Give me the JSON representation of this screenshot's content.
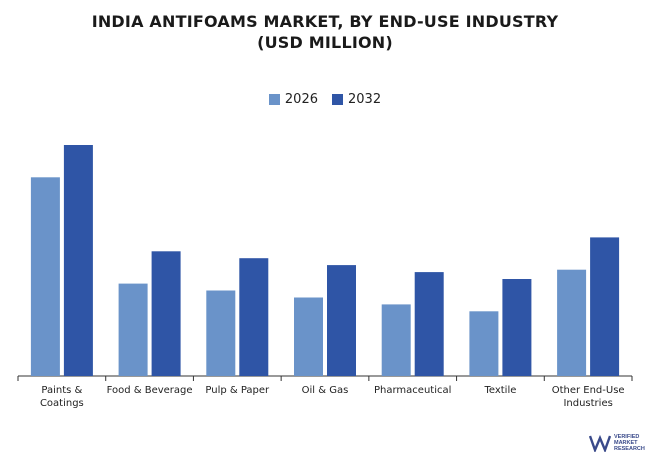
{
  "chart_data": {
    "type": "bar",
    "title": "INDIA ANTIFOAMS MARKET, BY END-USE INDUSTRY",
    "subtitle": "(USD MILLION)",
    "xlabel": "",
    "ylabel": "",
    "ylim": [
      0,
      100
    ],
    "grid": false,
    "legend_position": "top-center",
    "categories": [
      [
        "Paints &",
        "Coatings"
      ],
      [
        "Food & Beverage"
      ],
      [
        "Pulp & Paper"
      ],
      [
        "Oil & Gas"
      ],
      [
        "Pharmaceutical"
      ],
      [
        "Textile"
      ],
      [
        "Other End-Use",
        "Industries"
      ]
    ],
    "series": [
      {
        "name": "2026",
        "color": "#6a93c9",
        "values": [
          86,
          40,
          37,
          34,
          31,
          28,
          46
        ]
      },
      {
        "name": "2032",
        "color": "#2f55a6",
        "values": [
          100,
          54,
          51,
          48,
          45,
          42,
          60
        ]
      }
    ]
  },
  "logo": {
    "line1": "VERIFIED",
    "line2": "MARKET",
    "line3": "RESEARCH"
  }
}
